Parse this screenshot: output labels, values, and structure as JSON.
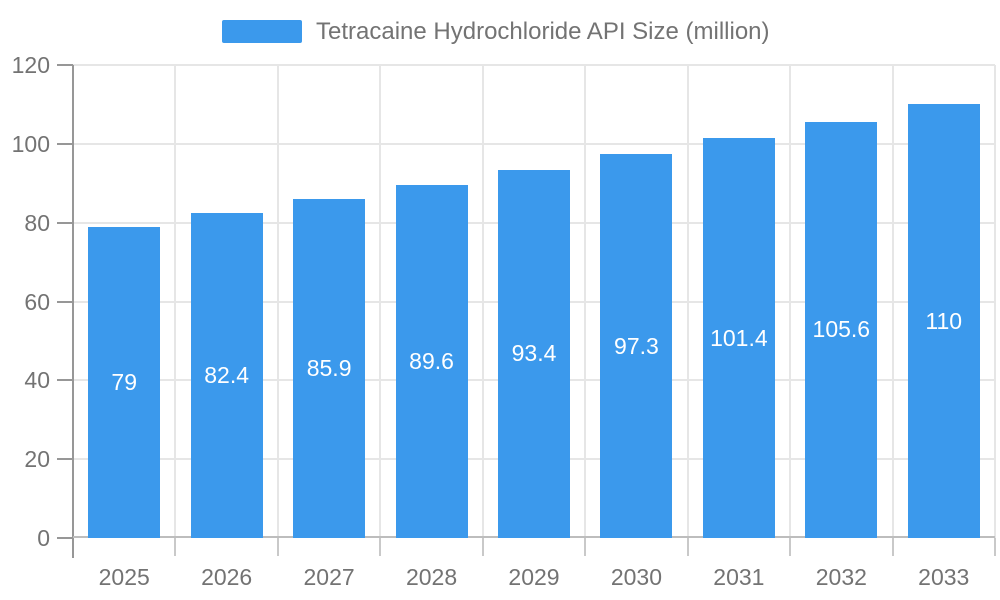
{
  "legend": {
    "label": "Tetracaine Hydrochloride API Size (million)"
  },
  "colors": {
    "bar": "#3b99ec",
    "axis_label": "#737373",
    "legend_label": "#737373",
    "value_label": "#ffffff",
    "y_axis_line": "#979797",
    "x_axis_line": "#bdbdbd",
    "grid_line": "#e6e6e6",
    "tick": "#c9c9c9",
    "background": "#ffffff"
  },
  "chart_data": {
    "type": "bar",
    "title": "",
    "xlabel": "",
    "ylabel": "",
    "categories": [
      "2025",
      "2026",
      "2027",
      "2028",
      "2029",
      "2030",
      "2031",
      "2032",
      "2033"
    ],
    "series": [
      {
        "name": "Tetracaine Hydrochloride API Size (million)",
        "values": [
          79,
          82.4,
          85.9,
          89.6,
          93.4,
          97.3,
          101.4,
          105.6,
          110
        ]
      }
    ],
    "value_labels": [
      "79",
      "82.4",
      "85.9",
      "89.6",
      "93.4",
      "97.3",
      "101.4",
      "105.6",
      "110"
    ],
    "ylim": [
      0,
      120
    ],
    "yticks": [
      0,
      20,
      40,
      60,
      80,
      100,
      120
    ],
    "grid": true,
    "legend_position": "top-center"
  }
}
